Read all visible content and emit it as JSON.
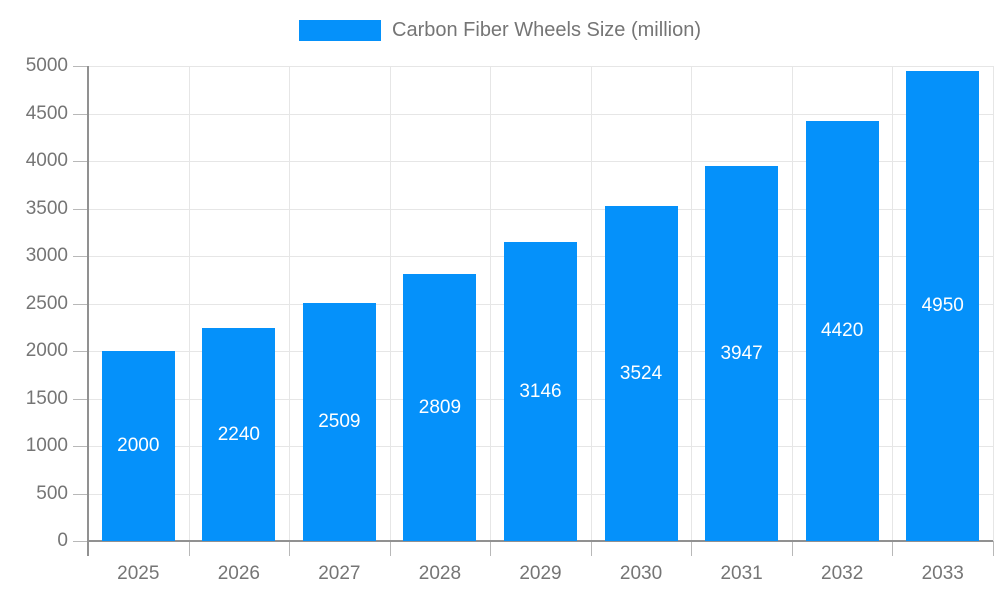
{
  "legend": {
    "label": "Carbon Fiber Wheels Size (million)",
    "swatch_color": "#0591fa"
  },
  "colors": {
    "bar": "#0591fa",
    "grid": "#e6e6e6",
    "axis": "#919191",
    "tick": "#b8b8b8",
    "axis_text": "#757575",
    "value_text": "#ffffff",
    "background": "#ffffff"
  },
  "chart_data": {
    "type": "bar",
    "title": "Carbon Fiber Wheels Size (million)",
    "series_name": "Carbon Fiber Wheels Size (million)",
    "categories": [
      "2025",
      "2026",
      "2027",
      "2028",
      "2029",
      "2030",
      "2031",
      "2032",
      "2033"
    ],
    "values": [
      2000,
      2240,
      2509,
      2809,
      3146,
      3524,
      3947,
      4420,
      4950
    ],
    "xlabel": "",
    "ylabel": "",
    "ylim": [
      0,
      5000
    ],
    "yticks": [
      0,
      500,
      1000,
      1500,
      2000,
      2500,
      3000,
      3500,
      4000,
      4500,
      5000
    ],
    "grid": true,
    "legend_position": "top-center",
    "value_labels": "inside-center",
    "bar_color": "#0591fa"
  }
}
